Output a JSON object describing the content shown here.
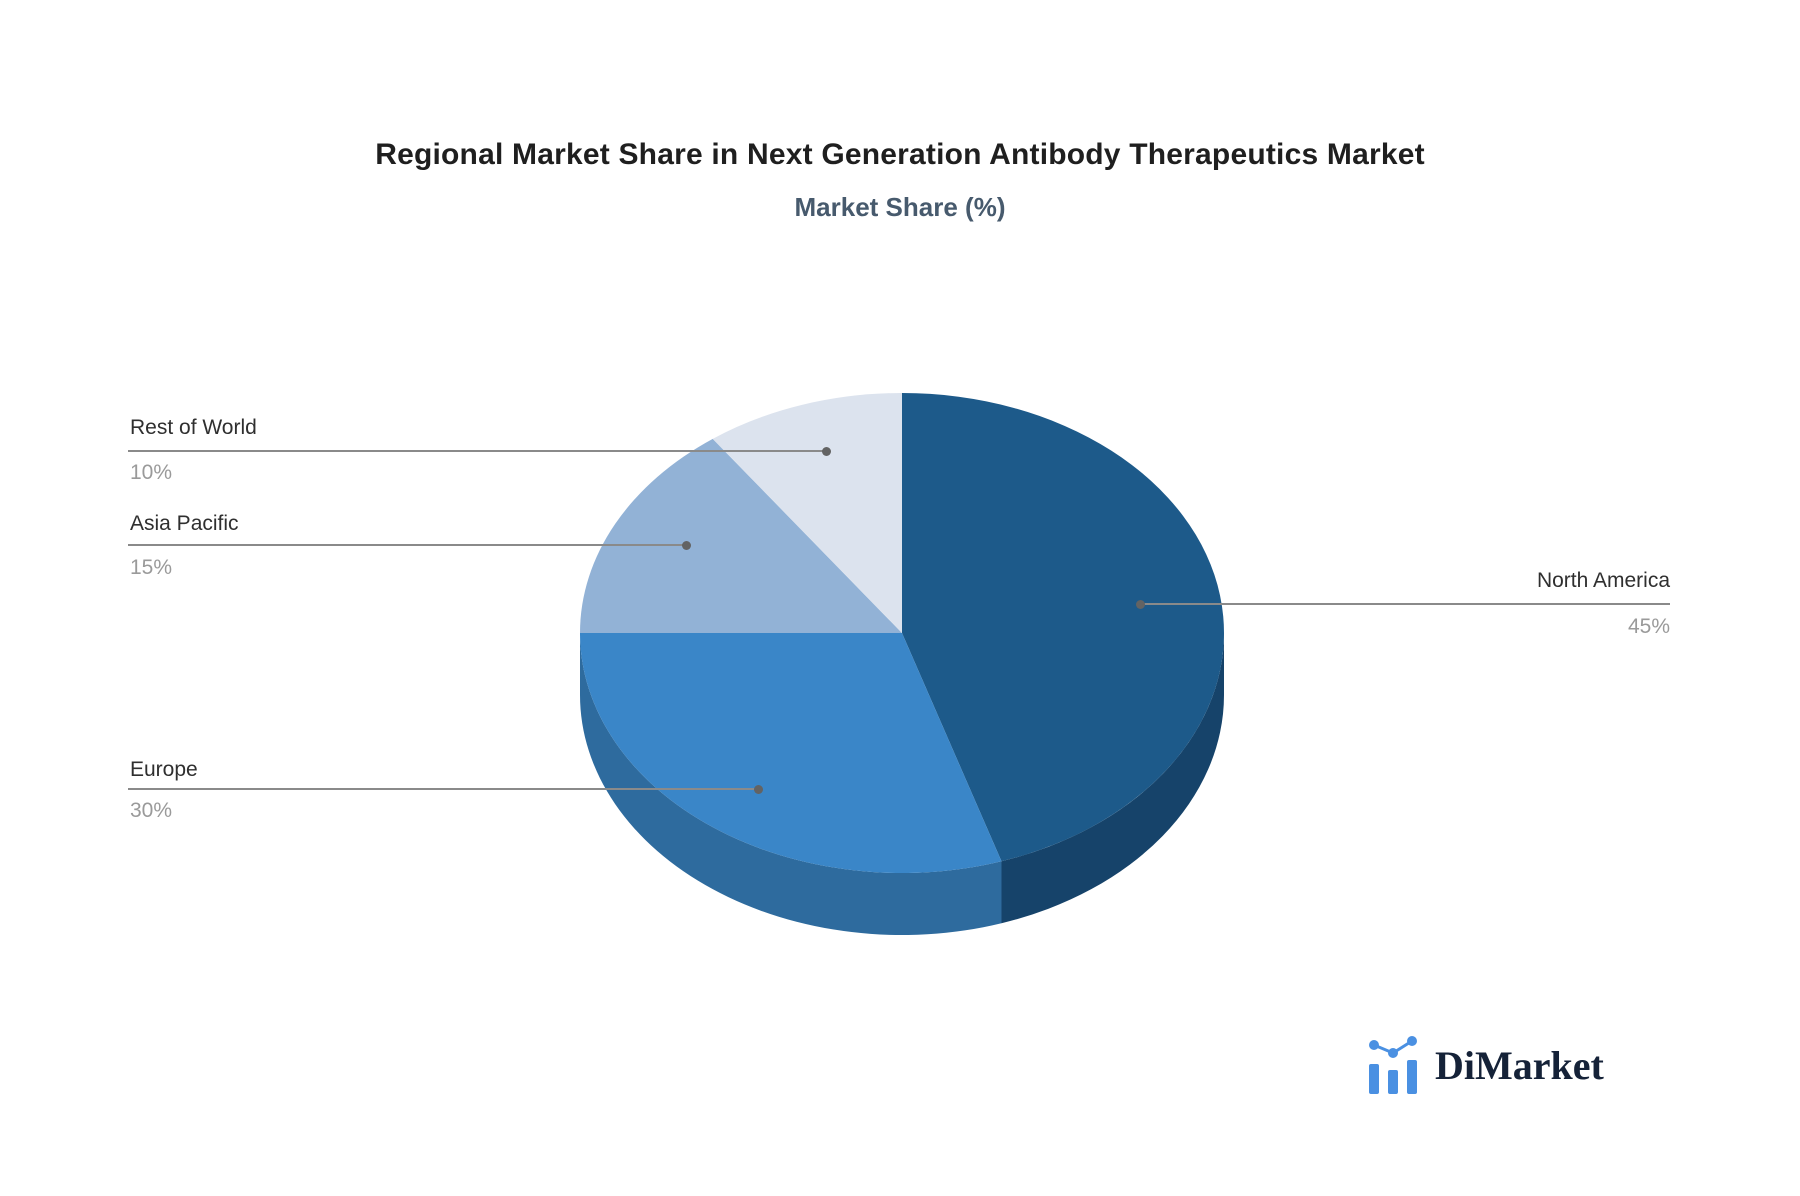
{
  "header": {
    "title": "Regional Market Share in Next Generation Antibody Therapeutics Market",
    "subtitle": "Market Share (%)"
  },
  "chart_data": {
    "type": "pie",
    "title": "Regional Market Share in Next Generation Antibody Therapeutics Market",
    "subtitle": "Market Share (%)",
    "unit": "%",
    "effect_3d": true,
    "start_angle_deg": 0,
    "direction": "clockwise",
    "legend_position": "callout-labels",
    "slices": [
      {
        "label": "North America",
        "value": 45,
        "pct_label": "45%",
        "color": "#1d5a8a",
        "side_color": "#16436a"
      },
      {
        "label": "Europe",
        "value": 30,
        "pct_label": "30%",
        "color": "#3a86c8",
        "side_color": "#2e6b9e"
      },
      {
        "label": "Asia Pacific",
        "value": 15,
        "pct_label": "15%",
        "color": "#92b2d6",
        "side_color": "#7493b5"
      },
      {
        "label": "Rest of World",
        "value": 10,
        "pct_label": "10%",
        "color": "#dce3ee",
        "side_color": "#b8c2d4"
      }
    ]
  },
  "brand": {
    "name": "DiMarket",
    "logo_icon": "bar-chart-logo-icon",
    "logo_blue": "#4a90e2",
    "logo_navy": "#152238"
  },
  "colors": {
    "background": "#ffffff",
    "title_text": "#1f1f1f",
    "subtitle_text": "#475a6d",
    "callout_label_text": "#2f2f2f",
    "callout_pct_text": "#9a9a9a",
    "leader_line": "#8a8a8a",
    "leader_dot": "#636363"
  }
}
